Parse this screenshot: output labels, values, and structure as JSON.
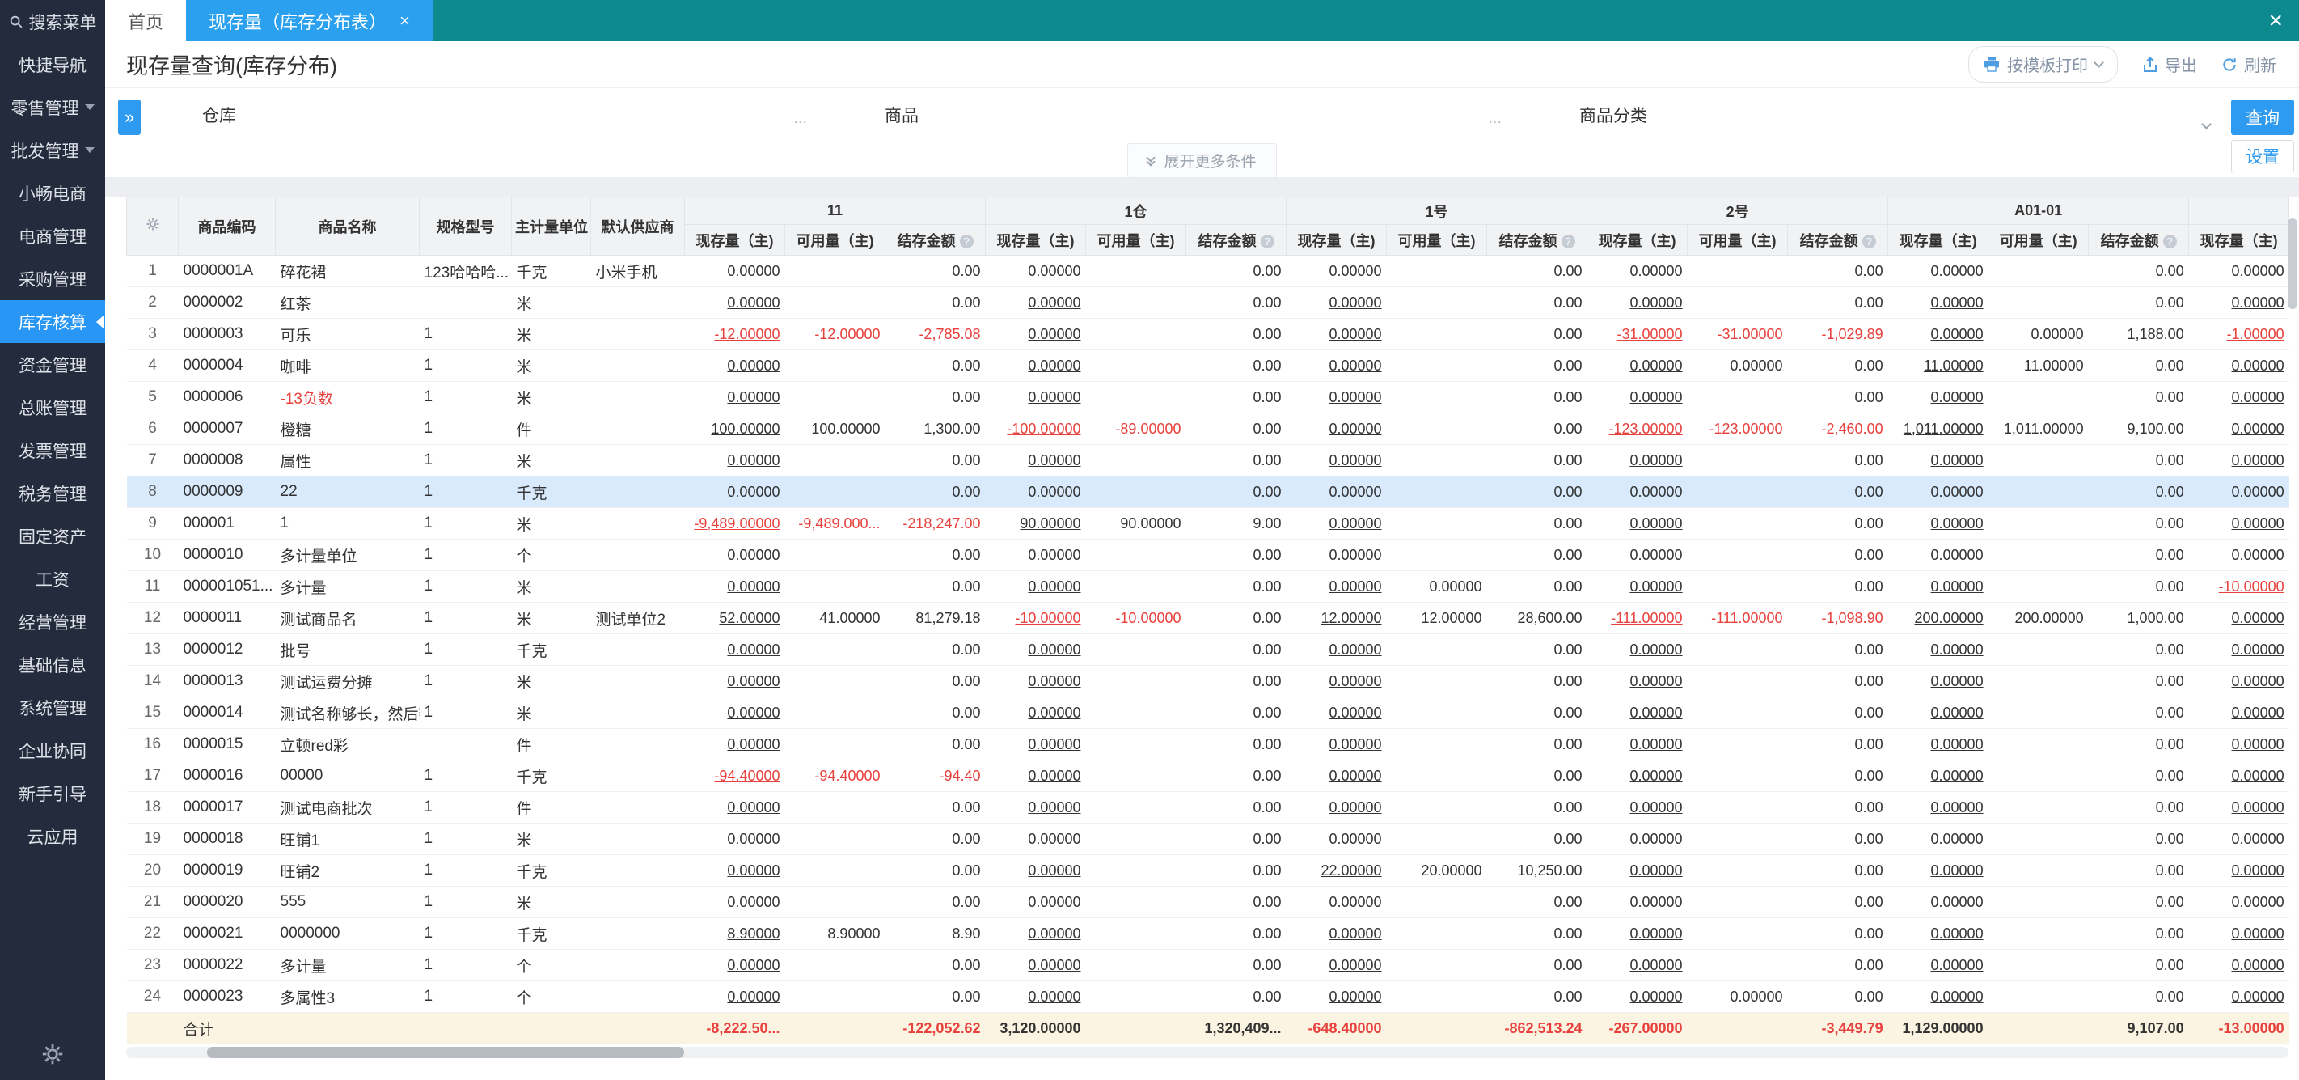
{
  "colors": {
    "accent_blue": "#2796f5",
    "tab_teal": "#0d8a8f",
    "sidebar_bg": "#242b3c",
    "negative_red": "#e8403c",
    "totals_bg": "#fbf4e2",
    "selected_row": "#d8eafc"
  },
  "sidebar": {
    "items": [
      {
        "label": "搜索菜单",
        "icon": "search"
      },
      {
        "label": "快捷导航"
      },
      {
        "label": "零售管理",
        "caret": true
      },
      {
        "label": "批发管理",
        "caret": true
      },
      {
        "label": "小畅电商"
      },
      {
        "label": "电商管理"
      },
      {
        "label": "采购管理"
      },
      {
        "label": "库存核算",
        "active": true
      },
      {
        "label": "资金管理"
      },
      {
        "label": "总账管理"
      },
      {
        "label": "发票管理"
      },
      {
        "label": "税务管理"
      },
      {
        "label": "固定资产"
      },
      {
        "label": "工资"
      },
      {
        "label": "经营管理"
      },
      {
        "label": "基础信息"
      },
      {
        "label": "系统管理"
      },
      {
        "label": "企业协同"
      },
      {
        "label": "新手引导"
      },
      {
        "label": "云应用"
      }
    ]
  },
  "tabs": {
    "home": "首页",
    "active": "现存量（库存分布表）",
    "close_icon": "×"
  },
  "page": {
    "title": "现存量查询(库存分布)"
  },
  "toolbar": {
    "print": "按模板打印",
    "export": "导出",
    "refresh": "刷新"
  },
  "filters": {
    "collapse_icon": "»",
    "warehouse": "仓库",
    "goods": "商品",
    "category": "商品分类",
    "picker": "...",
    "query": "查询",
    "settings": "设置",
    "more": "展开更多条件"
  },
  "table": {
    "fixed_headers": [
      "商品编码",
      "商品名称",
      "规格型号",
      "主计量单位",
      "默认供应商"
    ],
    "groups": [
      "11",
      "1仓",
      "1号",
      "2号",
      "A01-01"
    ],
    "sub_headers": [
      "现存量（主)",
      "可用量（主)",
      "结存金额"
    ],
    "last_col_header": "现存量（主)",
    "help_icon": "?",
    "rows": [
      {
        "n": 1,
        "code": "0000001A",
        "name": "碎花裙",
        "spec": "123哈哈哈...",
        "unit": "千克",
        "sup": "小米手机",
        "v": [
          "0.00000",
          "",
          "0.00",
          "0.00000",
          "",
          "0.00",
          "0.00000",
          "",
          "0.00",
          "0.00000",
          "",
          "0.00",
          "0.00000",
          "",
          "0.00",
          "0.00000"
        ]
      },
      {
        "n": 2,
        "code": "0000002",
        "name": "红茶",
        "spec": "",
        "unit": "米",
        "sup": "",
        "v": [
          "0.00000",
          "",
          "0.00",
          "0.00000",
          "",
          "0.00",
          "0.00000",
          "",
          "0.00",
          "0.00000",
          "",
          "0.00",
          "0.00000",
          "",
          "0.00",
          "0.00000"
        ]
      },
      {
        "n": 3,
        "code": "0000003",
        "name": "可乐",
        "spec": "1",
        "unit": "米",
        "sup": "",
        "v": [
          "-12.00000",
          "-12.00000",
          "-2,785.08",
          "0.00000",
          "",
          "0.00",
          "0.00000",
          "",
          "0.00",
          "-31.00000",
          "-31.00000",
          "-1,029.89",
          "0.00000",
          "0.00000",
          "1,188.00",
          "-1.00000"
        ]
      },
      {
        "n": 4,
        "code": "0000004",
        "name": "咖啡",
        "spec": "1",
        "unit": "米",
        "sup": "",
        "v": [
          "0.00000",
          "",
          "0.00",
          "0.00000",
          "",
          "0.00",
          "0.00000",
          "",
          "0.00",
          "0.00000",
          "0.00000",
          "0.00",
          "11.00000",
          "11.00000",
          "0.00",
          "0.00000"
        ]
      },
      {
        "n": 5,
        "code": "0000006",
        "name": "-13负数",
        "red": true,
        "spec": "1",
        "unit": "米",
        "sup": "",
        "v": [
          "0.00000",
          "",
          "0.00",
          "0.00000",
          "",
          "0.00",
          "0.00000",
          "",
          "0.00",
          "0.00000",
          "",
          "0.00",
          "0.00000",
          "",
          "0.00",
          "0.00000"
        ]
      },
      {
        "n": 6,
        "code": "0000007",
        "name": "橙糖",
        "spec": "1",
        "unit": "件",
        "sup": "",
        "v": [
          "100.00000",
          "100.00000",
          "1,300.00",
          "-100.00000",
          "-89.00000",
          "0.00",
          "0.00000",
          "",
          "0.00",
          "-123.00000",
          "-123.00000",
          "-2,460.00",
          "1,011.00000",
          "1,011.00000",
          "9,100.00",
          "0.00000"
        ]
      },
      {
        "n": 7,
        "code": "0000008",
        "name": "属性",
        "spec": "1",
        "unit": "米",
        "sup": "",
        "v": [
          "0.00000",
          "",
          "0.00",
          "0.00000",
          "",
          "0.00",
          "0.00000",
          "",
          "0.00",
          "0.00000",
          "",
          "0.00",
          "0.00000",
          "",
          "0.00",
          "0.00000"
        ]
      },
      {
        "n": 8,
        "code": "0000009",
        "name": "22",
        "spec": "1",
        "unit": "千克",
        "sup": "",
        "sel": true,
        "v": [
          "0.00000",
          "",
          "0.00",
          "0.00000",
          "",
          "0.00",
          "0.00000",
          "",
          "0.00",
          "0.00000",
          "",
          "0.00",
          "0.00000",
          "",
          "0.00",
          "0.00000"
        ]
      },
      {
        "n": 9,
        "code": "000001",
        "name": "1",
        "spec": "1",
        "unit": "米",
        "sup": "",
        "v": [
          "-9,489.00000",
          "-9,489.000...",
          "-218,247.00",
          "90.00000",
          "90.00000",
          "9.00",
          "0.00000",
          "",
          "0.00",
          "0.00000",
          "",
          "0.00",
          "0.00000",
          "",
          "0.00",
          "0.00000"
        ]
      },
      {
        "n": 10,
        "code": "0000010",
        "name": "多计量单位",
        "spec": "1",
        "unit": "个",
        "sup": "",
        "v": [
          "0.00000",
          "",
          "0.00",
          "0.00000",
          "",
          "0.00",
          "0.00000",
          "",
          "0.00",
          "0.00000",
          "",
          "0.00",
          "0.00000",
          "",
          "0.00",
          "0.00000"
        ]
      },
      {
        "n": 11,
        "code": "000001051...",
        "name": "多计量",
        "spec": "1",
        "unit": "米",
        "sup": "",
        "v": [
          "0.00000",
          "",
          "0.00",
          "0.00000",
          "",
          "0.00",
          "0.00000",
          "0.00000",
          "0.00",
          "0.00000",
          "",
          "0.00",
          "0.00000",
          "",
          "0.00",
          "-10.00000"
        ]
      },
      {
        "n": 12,
        "code": "0000011",
        "name": "测试商品名",
        "spec": "1",
        "unit": "米",
        "sup": "测试单位2",
        "v": [
          "52.00000",
          "41.00000",
          "81,279.18",
          "-10.00000",
          "-10.00000",
          "0.00",
          "12.00000",
          "12.00000",
          "28,600.00",
          "-111.00000",
          "-111.00000",
          "-1,098.90",
          "200.00000",
          "200.00000",
          "1,000.00",
          "0.00000"
        ]
      },
      {
        "n": 13,
        "code": "0000012",
        "name": "批号",
        "spec": "1",
        "unit": "千克",
        "sup": "",
        "v": [
          "0.00000",
          "",
          "0.00",
          "0.00000",
          "",
          "0.00",
          "0.00000",
          "",
          "0.00",
          "0.00000",
          "",
          "0.00",
          "0.00000",
          "",
          "0.00",
          "0.00000"
        ]
      },
      {
        "n": 14,
        "code": "0000013",
        "name": "测试运费分摊",
        "spec": "1",
        "unit": "米",
        "sup": "",
        "v": [
          "0.00000",
          "",
          "0.00",
          "0.00000",
          "",
          "0.00",
          "0.00000",
          "",
          "0.00",
          "0.00000",
          "",
          "0.00",
          "0.00000",
          "",
          "0.00",
          "0.00000"
        ]
      },
      {
        "n": 15,
        "code": "0000014",
        "name": "测试名称够长，然后额...",
        "spec": "1",
        "unit": "米",
        "sup": "",
        "v": [
          "0.00000",
          "",
          "0.00",
          "0.00000",
          "",
          "0.00",
          "0.00000",
          "",
          "0.00",
          "0.00000",
          "",
          "0.00",
          "0.00000",
          "",
          "0.00",
          "0.00000"
        ]
      },
      {
        "n": 16,
        "code": "0000015",
        "name": "立顿red彩",
        "spec": "",
        "unit": "件",
        "sup": "",
        "v": [
          "0.00000",
          "",
          "0.00",
          "0.00000",
          "",
          "0.00",
          "0.00000",
          "",
          "0.00",
          "0.00000",
          "",
          "0.00",
          "0.00000",
          "",
          "0.00",
          "0.00000"
        ]
      },
      {
        "n": 17,
        "code": "0000016",
        "name": "00000",
        "spec": "1",
        "unit": "千克",
        "sup": "",
        "v": [
          "-94.40000",
          "-94.40000",
          "-94.40",
          "0.00000",
          "",
          "0.00",
          "0.00000",
          "",
          "0.00",
          "0.00000",
          "",
          "0.00",
          "0.00000",
          "",
          "0.00",
          "0.00000"
        ]
      },
      {
        "n": 18,
        "code": "0000017",
        "name": "测试电商批次",
        "spec": "1",
        "unit": "件",
        "sup": "",
        "v": [
          "0.00000",
          "",
          "0.00",
          "0.00000",
          "",
          "0.00",
          "0.00000",
          "",
          "0.00",
          "0.00000",
          "",
          "0.00",
          "0.00000",
          "",
          "0.00",
          "0.00000"
        ]
      },
      {
        "n": 19,
        "code": "0000018",
        "name": "旺铺1",
        "spec": "1",
        "unit": "米",
        "sup": "",
        "v": [
          "0.00000",
          "",
          "0.00",
          "0.00000",
          "",
          "0.00",
          "0.00000",
          "",
          "0.00",
          "0.00000",
          "",
          "0.00",
          "0.00000",
          "",
          "0.00",
          "0.00000"
        ]
      },
      {
        "n": 20,
        "code": "0000019",
        "name": "旺铺2",
        "spec": "1",
        "unit": "千克",
        "sup": "",
        "v": [
          "0.00000",
          "",
          "0.00",
          "0.00000",
          "",
          "0.00",
          "22.00000",
          "20.00000",
          "10,250.00",
          "0.00000",
          "",
          "0.00",
          "0.00000",
          "",
          "0.00",
          "0.00000"
        ]
      },
      {
        "n": 21,
        "code": "0000020",
        "name": "555",
        "spec": "1",
        "unit": "米",
        "sup": "",
        "v": [
          "0.00000",
          "",
          "0.00",
          "0.00000",
          "",
          "0.00",
          "0.00000",
          "",
          "0.00",
          "0.00000",
          "",
          "0.00",
          "0.00000",
          "",
          "0.00",
          "0.00000"
        ]
      },
      {
        "n": 22,
        "code": "0000021",
        "name": "0000000",
        "spec": "1",
        "unit": "千克",
        "sup": "",
        "v": [
          "8.90000",
          "8.90000",
          "8.90",
          "0.00000",
          "",
          "0.00",
          "0.00000",
          "",
          "0.00",
          "0.00000",
          "",
          "0.00",
          "0.00000",
          "",
          "0.00",
          "0.00000"
        ]
      },
      {
        "n": 23,
        "code": "0000022",
        "name": "多计量",
        "spec": "1",
        "unit": "个",
        "sup": "",
        "v": [
          "0.00000",
          "",
          "0.00",
          "0.00000",
          "",
          "0.00",
          "0.00000",
          "",
          "0.00",
          "0.00000",
          "",
          "0.00",
          "0.00000",
          "",
          "0.00",
          "0.00000"
        ]
      },
      {
        "n": 24,
        "code": "0000023",
        "name": "多属性3",
        "spec": "1",
        "unit": "个",
        "sup": "",
        "v": [
          "0.00000",
          "",
          "0.00",
          "0.00000",
          "",
          "0.00",
          "0.00000",
          "",
          "0.00",
          "0.00000",
          "0.00000",
          "0.00",
          "0.00000",
          "",
          "0.00",
          "0.00000"
        ]
      }
    ],
    "totals": {
      "label": "合计",
      "v": [
        "-8,222.50...",
        "",
        "-122,052.62",
        "3,120.00000",
        "",
        "1,320,409...",
        "-648.40000",
        "",
        "-862,513.24",
        "-267.00000",
        "",
        "-3,449.79",
        "1,129.00000",
        "",
        "9,107.00",
        "-13.00000"
      ]
    }
  }
}
